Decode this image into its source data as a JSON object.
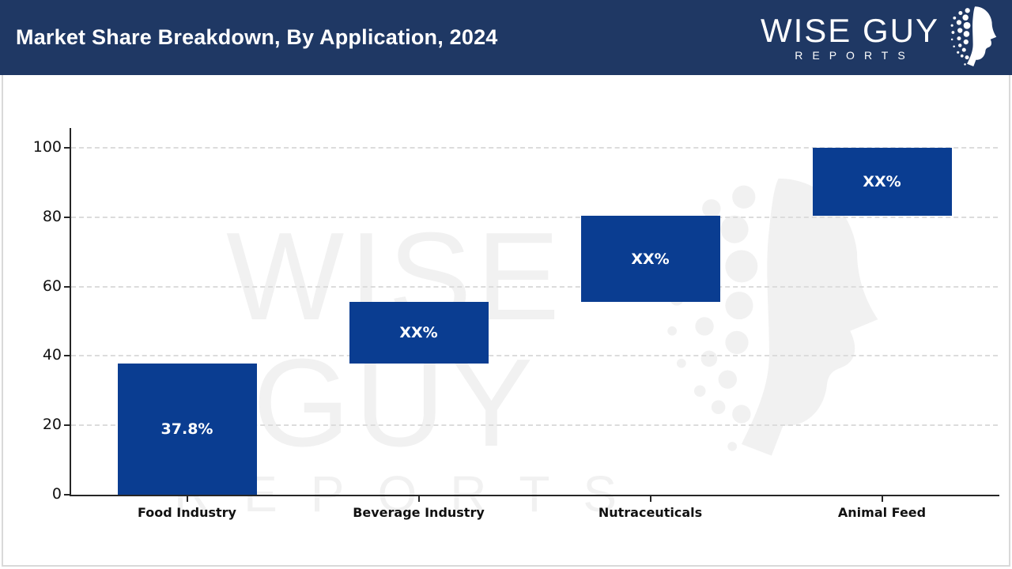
{
  "header": {
    "title": "Market Share Breakdown, By Application, 2024",
    "logo": {
      "line1": "WISE GUY",
      "line2": "REPORTS"
    }
  },
  "watermark": {
    "line1": "WISE GUY",
    "line2": "REPORTS"
  },
  "colors": {
    "header_bg": "#1f3864",
    "bar": "#0a3d91",
    "grid": "#dcdcdc",
    "axis": "#262626",
    "bar_label": "#ffffff",
    "watermark": "#f1f1f1"
  },
  "chart_data": {
    "type": "waterfall",
    "title": "Market Share Breakdown, By Application, 2024",
    "categories": [
      "Food Industry",
      "Beverage Industry",
      "Nutraceuticals",
      "Animal Feed"
    ],
    "segments": [
      {
        "category": "Food Industry",
        "start": 0,
        "end": 37.8,
        "label": "37.8%"
      },
      {
        "category": "Beverage Industry",
        "start": 37.8,
        "end": 55.5,
        "label": "XX%"
      },
      {
        "category": "Nutraceuticals",
        "start": 55.5,
        "end": 80.3,
        "label": "XX%"
      },
      {
        "category": "Animal Feed",
        "start": 80.3,
        "end": 100,
        "label": "XX%"
      }
    ],
    "ylim": [
      0,
      100
    ],
    "yticks": [
      0,
      20,
      40,
      60,
      80,
      100
    ],
    "grid": "horizontal-dashed",
    "legend": "none",
    "bar_color": "#0a3d91"
  }
}
